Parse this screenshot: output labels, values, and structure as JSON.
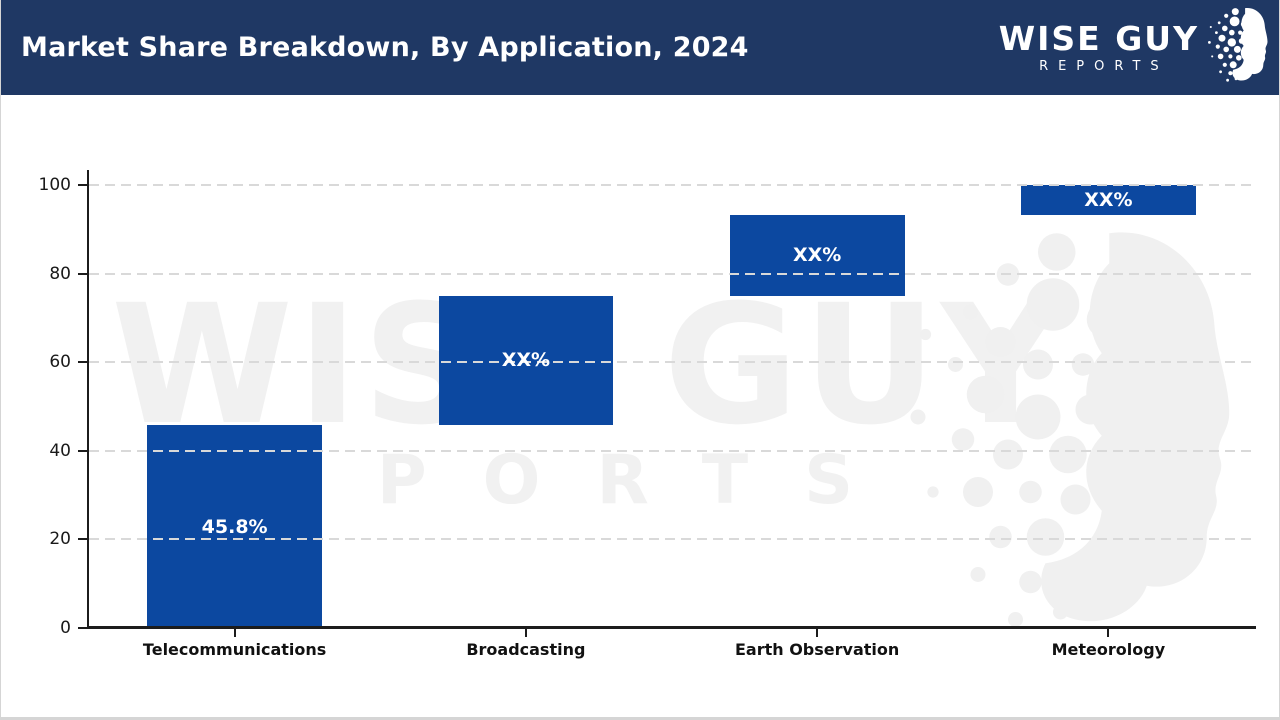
{
  "header": {
    "title": "Market Share Breakdown, By Application, 2024",
    "logo": {
      "line1": "WISE GUY",
      "line2": "REPORTS"
    }
  },
  "watermark": {
    "line1": "WISE GUY",
    "line2": "REPORTS"
  },
  "theme": {
    "header_bg": "#1f3864",
    "bar_color": "#0c48a0",
    "grid_color": "#d9d9d9",
    "axis_color": "#1c1c1c",
    "watermark_color": "#f0f0f0",
    "title_color": "#ffffff"
  },
  "chart_data": {
    "type": "bar",
    "subtype": "stacked-waterfall",
    "title": "Market Share Breakdown, By Application, 2024",
    "categories": [
      "Telecommunications",
      "Broadcasting",
      "Earth Observation",
      "Meteorology"
    ],
    "segments": [
      {
        "category": "Telecommunications",
        "start": 0,
        "end": 45.8,
        "label": "45.8%"
      },
      {
        "category": "Broadcasting",
        "start": 45.8,
        "end": 75.1,
        "label": "XX%"
      },
      {
        "category": "Earth Observation",
        "start": 75.1,
        "end": 93.4,
        "label": "XX%"
      },
      {
        "category": "Meteorology",
        "start": 93.4,
        "end": 100,
        "label": "XX%"
      }
    ],
    "xlabel": "",
    "ylabel": "",
    "yticks": [
      0,
      20,
      40,
      60,
      80,
      100
    ],
    "gridlines": [
      20,
      40,
      60,
      80,
      100
    ],
    "ylim": [
      0,
      103.5
    ],
    "grid_style": "dashed-horizontal",
    "legend": "none",
    "bar_color": "#0c48a0",
    "label_color": "#ffffff"
  }
}
